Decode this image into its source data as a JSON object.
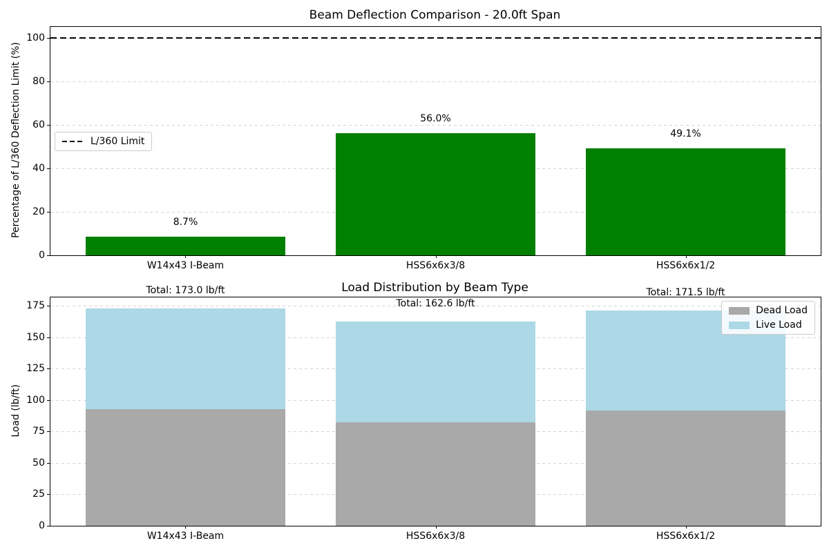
{
  "figure": {
    "background": "#ffffff"
  },
  "chart_data": [
    {
      "type": "bar",
      "title": "Beam Deflection Comparison - 20.0ft Span",
      "ylabel": "Percentage of L/360 Deflection Limit (%)",
      "xlabel": "",
      "categories": [
        "W14x43 I-Beam",
        "HSS6x6x3/8",
        "HSS6x6x1/2"
      ],
      "values": [
        8.7,
        56.0,
        49.1
      ],
      "bar_labels": [
        "8.7%",
        "56.0%",
        "49.1%"
      ],
      "bar_color": "#008000",
      "yticks": [
        0,
        20,
        40,
        60,
        80,
        100
      ],
      "ylim": [
        0,
        105
      ],
      "grid": true,
      "grid_color": "#d3d3d3",
      "ref_line": {
        "value": 100,
        "label": "L/360 Limit",
        "color": "#000000",
        "style": "dashed"
      },
      "legend_position": "center left"
    },
    {
      "type": "stacked-bar",
      "title": "Load Distribution by Beam Type",
      "ylabel": "Load (lb/ft)",
      "xlabel": "",
      "categories": [
        "W14x43 I-Beam",
        "HSS6x6x3/8",
        "HSS6x6x1/2"
      ],
      "series": [
        {
          "name": "Dead Load",
          "color": "#a9a9a9",
          "values": [
            93.0,
            82.6,
            91.5
          ]
        },
        {
          "name": "Live Load",
          "color": "#add8e6",
          "values": [
            80.0,
            80.0,
            80.0
          ]
        }
      ],
      "totals": [
        173.0,
        162.6,
        171.5
      ],
      "bar_labels": [
        "Total: 173.0 lb/ft",
        "Total: 162.6 lb/ft",
        "Total: 171.5 lb/ft"
      ],
      "yticks": [
        0,
        25,
        50,
        75,
        100,
        125,
        150,
        175
      ],
      "ylim": [
        0,
        181.65
      ],
      "grid": true,
      "grid_color": "#d3d3d3",
      "legend_position": "upper right"
    }
  ]
}
